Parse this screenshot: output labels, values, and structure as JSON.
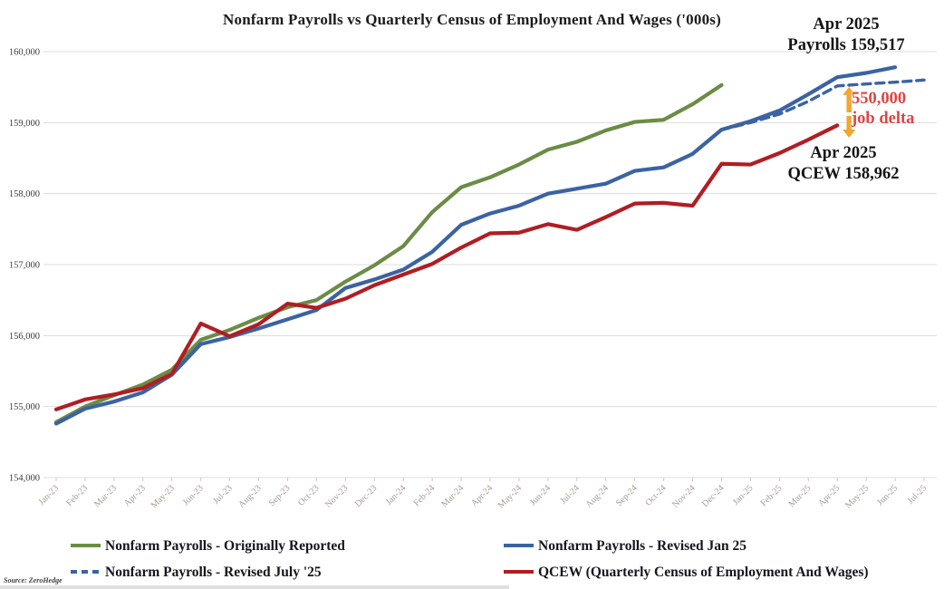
{
  "title": "Nonfarm Payrolls vs Quarterly Census of Employment And Wages ('000s)",
  "source": "Source: ZeroHedge",
  "annotations": {
    "payrolls": {
      "line1": "Apr 2025",
      "line2": "Payrolls 159,517"
    },
    "delta": {
      "line1": "550,000",
      "line2": "job delta"
    },
    "qcew": {
      "line1": "Apr 2025",
      "line2": "QCEW 158,962"
    }
  },
  "colors": {
    "green": "#6b8c45",
    "blue": "#3b63a3",
    "red": "#b11d22",
    "arrow_orange": "#efa72e",
    "gridline": "#dcdcdc",
    "x_label": "#a39d94",
    "y_label": "#3c3c3c"
  },
  "legend": {
    "items": [
      {
        "label": "Nonfarm Payrolls - Originally Reported",
        "color": "#6b8c45",
        "style": "solid"
      },
      {
        "label": "Nonfarm Payrolls - Revised Jan 25",
        "color": "#3b63a3",
        "style": "solid"
      },
      {
        "label": "Nonfarm Payrolls - Revised July '25",
        "color": "#3b63a3",
        "style": "dashed"
      },
      {
        "label": "QCEW (Quarterly Census of Employment And Wages)",
        "color": "#b11d22",
        "style": "solid"
      }
    ]
  },
  "chart_data": {
    "type": "line",
    "title": "Nonfarm Payrolls vs Quarterly Census of Employment And Wages ('000s)",
    "ylim": [
      154000,
      160000
    ],
    "grid": "horizontal",
    "legend_position": "bottom",
    "y_ticks": {
      "values": [
        154000,
        155000,
        156000,
        157000,
        158000,
        159000,
        160000
      ],
      "labels": [
        "154,000",
        "155,000",
        "156,000",
        "157,000",
        "158,000",
        "159,000",
        "160,000"
      ]
    },
    "categories": [
      "Jan-23",
      "Feb-23",
      "Mar-23",
      "Apr-23",
      "May-23",
      "Jun-23",
      "Jul-23",
      "Aug-23",
      "Sep-23",
      "Oct-23",
      "Nov-23",
      "Dec-23",
      "Jan-24",
      "Feb-24",
      "Mar-24",
      "Apr-24",
      "May-24",
      "Jun-24",
      "Jul-24",
      "Aug-24",
      "Sep-24",
      "Oct-24",
      "Nov-24",
      "Dec-24",
      "Jan-25",
      "Feb-25",
      "Mar-25",
      "Apr-25",
      "May-25",
      "Jun-25",
      "Jul-25"
    ],
    "series": [
      {
        "name": "Nonfarm Payrolls - Originally Reported",
        "color": "#6b8c45",
        "style": "solid",
        "start_index": 0,
        "values": [
          154780,
          155000,
          155160,
          155310,
          155520,
          155940,
          156080,
          156250,
          156400,
          156500,
          156760,
          156990,
          157260,
          157740,
          158090,
          158230,
          158410,
          158620,
          158730,
          158890,
          159010,
          159040,
          159260,
          159530
        ]
      },
      {
        "name": "Nonfarm Payrolls - Revised July '25",
        "color": "#3b63a3",
        "style": "dashed",
        "start_index": 23,
        "values": [
          158900,
          159000,
          159120,
          159300,
          159517,
          159545,
          159570,
          159600
        ]
      },
      {
        "name": "Nonfarm Payrolls - Revised Jan 25",
        "color": "#3b63a3",
        "style": "solid",
        "start_index": 0,
        "values": [
          154760,
          154970,
          155070,
          155200,
          155450,
          155880,
          155980,
          156100,
          156230,
          156360,
          156670,
          156790,
          156930,
          157180,
          157560,
          157720,
          157830,
          158000,
          158070,
          158140,
          158320,
          158370,
          158560,
          158900,
          159020,
          159170,
          159400,
          159640,
          159700,
          159780
        ]
      },
      {
        "name": "QCEW (Quarterly Census of Employment And Wages)",
        "color": "#b11d22",
        "style": "solid",
        "start_index": 0,
        "values": [
          154960,
          155100,
          155170,
          155260,
          155460,
          156170,
          155990,
          156160,
          156450,
          156390,
          156520,
          156710,
          156860,
          157010,
          157240,
          157440,
          157450,
          157570,
          157490,
          157670,
          157860,
          157870,
          157830,
          158420,
          158410,
          158570,
          158760,
          158962
        ]
      }
    ],
    "callouts": {
      "payrolls_apr_2025": 159517,
      "qcew_apr_2025": 158962,
      "job_delta": 550000
    }
  }
}
